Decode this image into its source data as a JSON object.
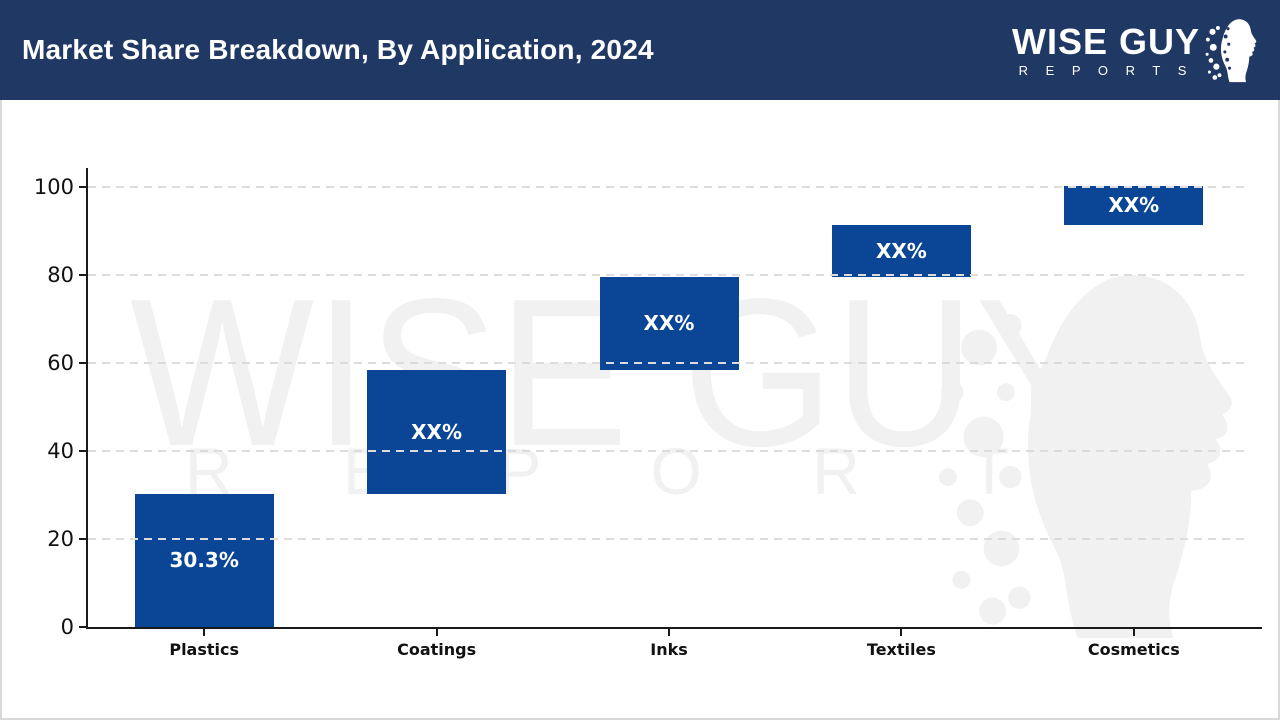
{
  "header": {
    "title": "Market Share Breakdown, By Application, 2024",
    "logo": {
      "name": "WISE GUY",
      "tagline": "R E P O R T S"
    }
  },
  "watermark": {
    "name": "WISE GUY",
    "tagline": "R E P O R T S"
  },
  "colors": {
    "header_bg": "#203864",
    "bar": "#0b4596",
    "bar_label": "#ffffff",
    "grid": "#dcdcdc",
    "axis": "#1a1a1a",
    "watermark": "#f1f1f1",
    "frame_border": "#d9d9d9"
  },
  "chart_data": {
    "type": "bar",
    "subtype": "waterfall",
    "title": "Market Share Breakdown, By Application, 2024",
    "categories": [
      "Plastics",
      "Coatings",
      "Inks",
      "Textiles",
      "Cosmetics"
    ],
    "series": [
      {
        "name": "Market share (%)",
        "segments": [
          [
            0,
            30.3
          ],
          [
            30.3,
            58.4
          ],
          [
            58.4,
            79.6
          ],
          [
            79.6,
            91.3
          ],
          [
            91.3,
            100.3
          ]
        ],
        "increments": [
          30.3,
          28.1,
          21.2,
          11.7,
          9.0
        ],
        "labels": [
          "30.3%",
          "XX%",
          "XX%",
          "XX%",
          "XX%"
        ]
      }
    ],
    "xlabel": "",
    "ylabel": "",
    "ylim": [
      0,
      100
    ],
    "yticks": [
      0,
      20,
      40,
      60,
      80,
      100
    ],
    "grid": "horizontal-dashed",
    "legend": "none"
  }
}
